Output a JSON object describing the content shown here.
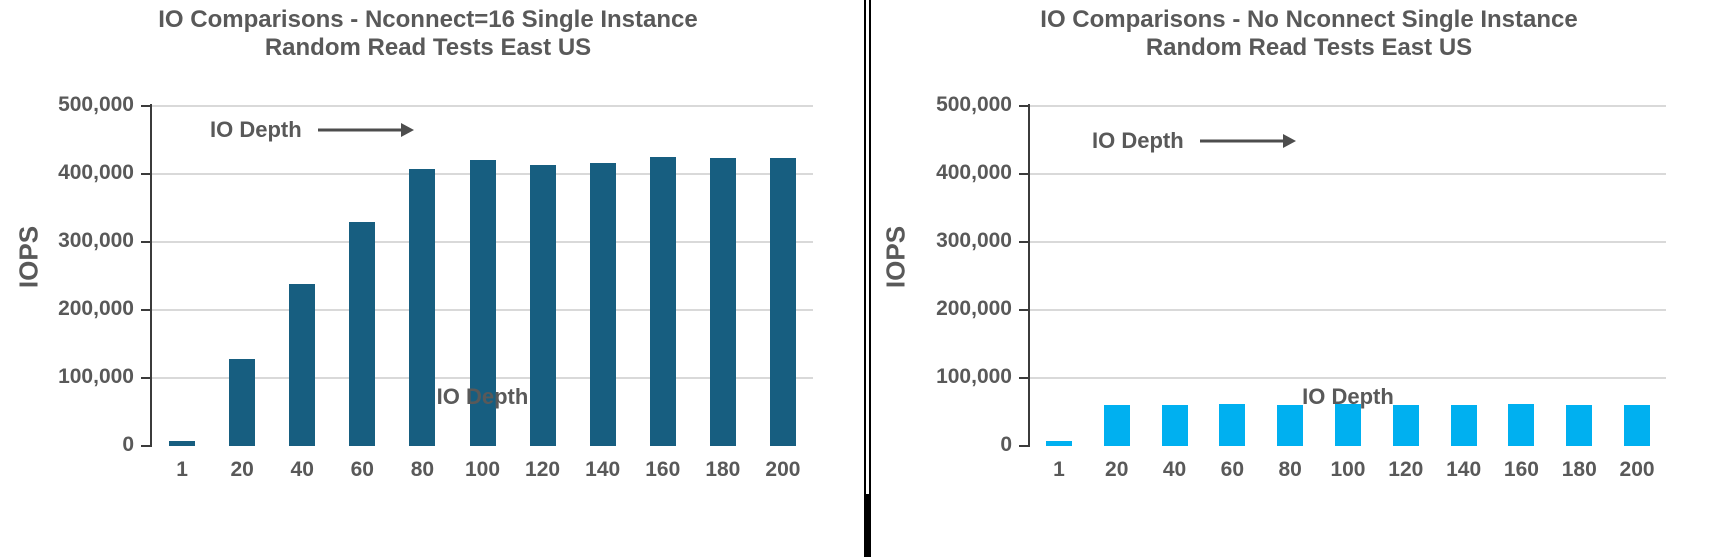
{
  "colors": {
    "text": "#595959",
    "gridline": "#D9D9D9",
    "axis_line": "#3B3B3B",
    "arrow": "#4D4D4D",
    "divider": "#000000",
    "background": "#FFFFFF",
    "left_bar_color": "#175E80",
    "right_bar_color": "#00B0F0"
  },
  "chart_data": [
    {
      "type": "bar",
      "title_line1": "IO Comparisons -  Nconnect=16 Single Instance",
      "title_line2": "Random Read Tests East US",
      "ylabel": "IOPS",
      "xlabel": "IO Depth",
      "annotation": "IO Depth",
      "categories": [
        "1",
        "20",
        "40",
        "60",
        "80",
        "100",
        "120",
        "140",
        "160",
        "180",
        "200"
      ],
      "values": [
        8000,
        128000,
        238000,
        329000,
        408000,
        421000,
        413000,
        416000,
        425000,
        423000,
        424000
      ],
      "ylim": [
        0,
        500000
      ],
      "ytick_interval": 100000,
      "ytick_labels": [
        "0",
        "100,000",
        "200,000",
        "300,000",
        "400,000",
        "500,000"
      ],
      "bar_color": "#175E80",
      "grid": true,
      "legend": "none"
    },
    {
      "type": "bar",
      "title_line1": "IO Comparisons - No Nconnect Single Instance",
      "title_line2": "Random Read Tests East US",
      "ylabel": "IOPS",
      "xlabel": "IO Depth",
      "annotation": "IO Depth",
      "categories": [
        "1",
        "20",
        "40",
        "60",
        "80",
        "100",
        "120",
        "140",
        "160",
        "180",
        "200"
      ],
      "values": [
        8000,
        61000,
        61000,
        62000,
        61000,
        62000,
        61000,
        61000,
        62000,
        61000,
        61000
      ],
      "ylim": [
        0,
        500000
      ],
      "ytick_interval": 100000,
      "ytick_labels": [
        "0",
        "100,000",
        "200,000",
        "300,000",
        "400,000",
        "500,000"
      ],
      "bar_color": "#00B0F0",
      "grid": true,
      "legend": "none"
    }
  ]
}
